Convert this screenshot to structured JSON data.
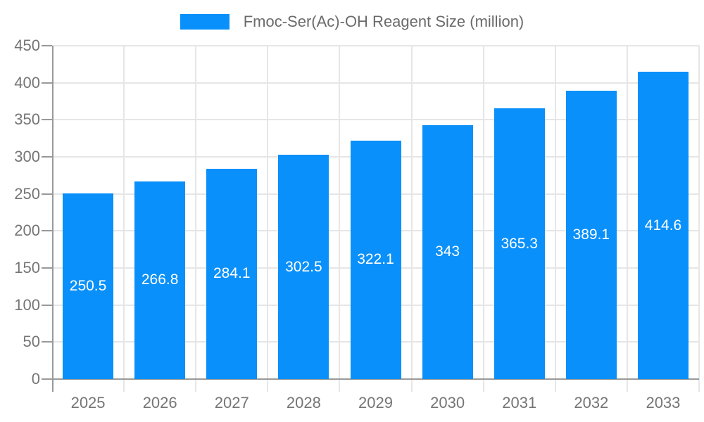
{
  "legend": {
    "label": "Fmoc-Ser(Ac)-OH Reagent Size (million)"
  },
  "colors": {
    "bar": "#0a90fa",
    "grid": "#e6e6e6",
    "axis": "#999999",
    "axis_text": "#757575",
    "legend_text": "#6b6b6b",
    "value_text": "#ffffff",
    "background": "#ffffff"
  },
  "chart_data": {
    "type": "bar",
    "title": "Fmoc-Ser(Ac)-OH Reagent Size (million)",
    "series_name": "Fmoc-Ser(Ac)-OH Reagent Size (million)",
    "categories": [
      "2025",
      "2026",
      "2027",
      "2028",
      "2029",
      "2030",
      "2031",
      "2032",
      "2033"
    ],
    "values": [
      250.5,
      266.8,
      284.1,
      302.5,
      322.1,
      343,
      365.3,
      389.1,
      414.6
    ],
    "value_labels": [
      "250.5",
      "266.8",
      "284.1",
      "302.5",
      "322.1",
      "343",
      "365.3",
      "389.1",
      "414.6"
    ],
    "xlabel": "",
    "ylabel": "",
    "ylim": [
      0,
      450
    ],
    "ytick_step": 50,
    "ytick_labels": [
      "0",
      "50",
      "100",
      "150",
      "200",
      "250",
      "300",
      "350",
      "400",
      "450"
    ],
    "grid": true,
    "legend_position": "top",
    "value_label_position": "inside-center"
  }
}
